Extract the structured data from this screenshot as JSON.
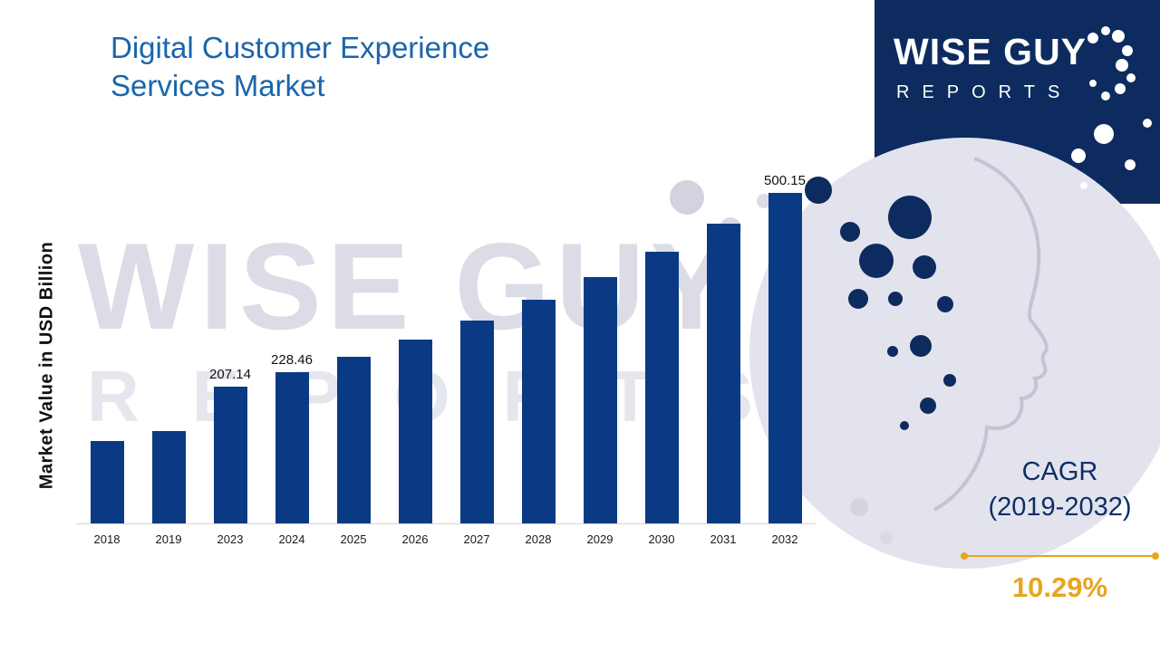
{
  "title": {
    "line1": "Digital Customer Experience",
    "line2": "Services Market"
  },
  "logo": {
    "name": "WISE GUY",
    "sub": "REPORTS"
  },
  "watermark": {
    "line1": "WISE GUY",
    "line2": "REPORTS"
  },
  "cagr": {
    "label": "CAGR",
    "range": "(2019-2032)",
    "value": "10.29%"
  },
  "chart_data": {
    "type": "bar",
    "title": "Digital Customer Experience Services Market",
    "xlabel": "",
    "ylabel": "Market Value in USD Billion",
    "categories": [
      "2018",
      "2019",
      "2023",
      "2024",
      "2025",
      "2026",
      "2027",
      "2028",
      "2029",
      "2030",
      "2031",
      "2032"
    ],
    "values": [
      124.5,
      139.9,
      207.14,
      228.46,
      251.97,
      277.9,
      306.49,
      338.03,
      372.81,
      411.18,
      453.48,
      500.15
    ],
    "data_labels": {
      "2023": "207.14",
      "2024": "228.46",
      "2032": "500.15"
    },
    "ylim": [
      0,
      520
    ],
    "grid": false,
    "legend": false,
    "bar_color": "#0b3a85"
  },
  "colors": {
    "title_blue": "#1a65ab",
    "bar_navy": "#0b3a85",
    "brand_navy": "#0d2b5e",
    "accent_gold": "#e8a51e",
    "watermark_gray": "#dcdce6"
  }
}
